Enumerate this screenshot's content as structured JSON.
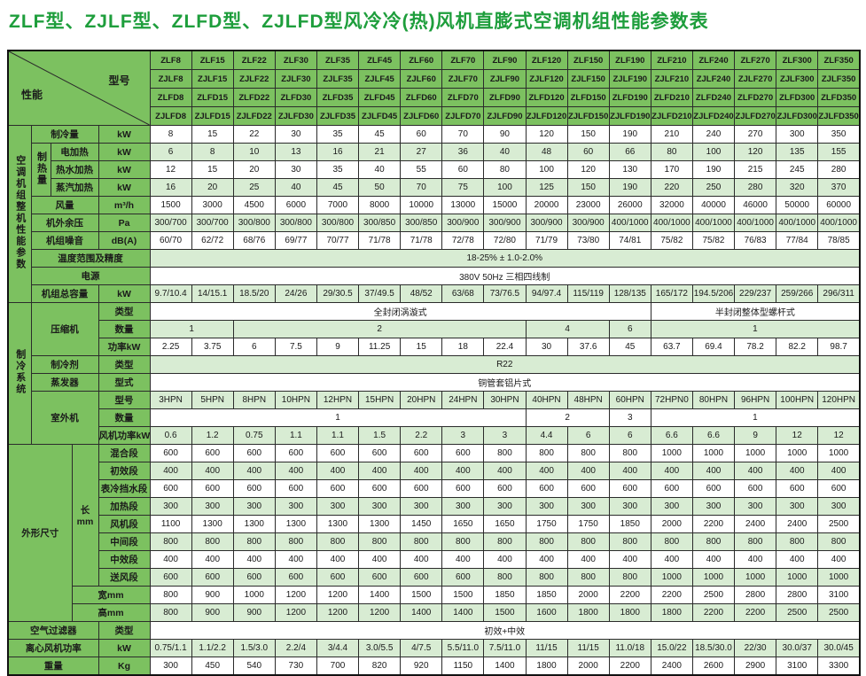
{
  "title": "ZLF型、ZJLF型、ZLFD型、ZJLFD型风冷冷(热)风机直膨式空调机组性能参数表",
  "colors": {
    "title_green": "#1e9e3c",
    "header_green": "#7cc160",
    "row_light_green": "#d8ecd3"
  },
  "header": {
    "corner_top": "型号",
    "corner_bottom": "性能",
    "model_rows": [
      [
        "ZLF8",
        "ZLF15",
        "ZLF22",
        "ZLF30",
        "ZLF35",
        "ZLF45",
        "ZLF60",
        "ZLF70",
        "ZLF90",
        "ZLF120",
        "ZLF150",
        "ZLF190",
        "ZLF210",
        "ZLF240",
        "ZLF270",
        "ZLF300",
        "ZLF350"
      ],
      [
        "ZJLF8",
        "ZJLF15",
        "ZJLF22",
        "ZJLF30",
        "ZJLF35",
        "ZJLF45",
        "ZJLF60",
        "ZJLF70",
        "ZJLF90",
        "ZJLF120",
        "ZJLF150",
        "ZJLF190",
        "ZJLF210",
        "ZJLF240",
        "ZJLF270",
        "ZJLF300",
        "ZJLF350"
      ],
      [
        "ZLFD8",
        "ZLFD15",
        "ZLFD22",
        "ZLFD30",
        "ZLFD35",
        "ZLFD45",
        "ZLFD60",
        "ZLFD70",
        "ZLFD90",
        "ZLFD120",
        "ZLFD150",
        "ZLFD190",
        "ZLFD210",
        "ZLFD240",
        "ZLFD270",
        "ZLFD300",
        "ZLFD350"
      ],
      [
        "ZJLFD8",
        "ZJLFD15",
        "ZJLFD22",
        "ZJLFD30",
        "ZJLFD35",
        "ZJLFD45",
        "ZJLFD60",
        "ZJLFD70",
        "ZJLFD90",
        "ZJLFD120",
        "ZJLFD150",
        "ZJLFD190",
        "ZJLFD210",
        "ZJLFD240",
        "ZJLFD270",
        "ZJLFD300",
        "ZJLFD350"
      ]
    ]
  },
  "rows": [
    {
      "labels": [
        {
          "text": "空调机组整机性能参数",
          "rowspan": 10,
          "vertical": true,
          "name": "group-label-unit-performance"
        },
        {
          "text": "制冷量",
          "colspan": 3
        },
        {
          "text": "kW"
        }
      ],
      "values": [
        "8",
        "15",
        "22",
        "30",
        "35",
        "45",
        "60",
        "70",
        "90",
        "120",
        "150",
        "190",
        "210",
        "240",
        "270",
        "300",
        "350"
      ]
    },
    {
      "labels": [
        {
          "text": "制热量",
          "rowspan": 3,
          "vertical": true,
          "name": "group-label-heating"
        },
        {
          "text": "电加热",
          "colspan": 2
        },
        {
          "text": "kW"
        }
      ],
      "values": [
        "6",
        "8",
        "10",
        "13",
        "16",
        "21",
        "27",
        "36",
        "40",
        "48",
        "60",
        "66",
        "80",
        "100",
        "120",
        "135",
        "155"
      ]
    },
    {
      "labels": [
        {
          "text": "热水加热",
          "colspan": 2
        },
        {
          "text": "kW"
        }
      ],
      "values": [
        "12",
        "15",
        "20",
        "30",
        "35",
        "40",
        "55",
        "60",
        "80",
        "100",
        "120",
        "130",
        "170",
        "190",
        "215",
        "245",
        "280"
      ]
    },
    {
      "labels": [
        {
          "text": "蒸汽加热",
          "colspan": 2
        },
        {
          "text": "kW"
        }
      ],
      "values": [
        "16",
        "20",
        "25",
        "40",
        "45",
        "50",
        "70",
        "75",
        "100",
        "125",
        "150",
        "190",
        "220",
        "250",
        "280",
        "320",
        "370"
      ]
    },
    {
      "labels": [
        {
          "text": "风量",
          "colspan": 3
        },
        {
          "text": "m³/h"
        }
      ],
      "values": [
        "1500",
        "3000",
        "4500",
        "6000",
        "7000",
        "8000",
        "10000",
        "13000",
        "15000",
        "20000",
        "23000",
        "26000",
        "32000",
        "40000",
        "46000",
        "50000",
        "60000"
      ]
    },
    {
      "labels": [
        {
          "text": "机外余压",
          "colspan": 3
        },
        {
          "text": "Pa"
        }
      ],
      "values": [
        "300/700",
        "300/700",
        "300/800",
        "300/800",
        "300/800",
        "300/850",
        "300/850",
        "300/900",
        "300/900",
        "300/900",
        "300/900",
        "400/1000",
        "400/1000",
        "400/1000",
        "400/1000",
        "400/1000",
        "400/1000"
      ]
    },
    {
      "labels": [
        {
          "text": "机组噪音",
          "colspan": 3
        },
        {
          "text": "dB(A)"
        }
      ],
      "values": [
        "60/70",
        "62/72",
        "68/76",
        "69/77",
        "70/77",
        "71/78",
        "71/78",
        "72/78",
        "72/80",
        "71/79",
        "73/80",
        "74/81",
        "75/82",
        "75/82",
        "76/83",
        "77/84",
        "78/85"
      ]
    },
    {
      "labels": [
        {
          "text": "温度范围及精度",
          "colspan": 4
        }
      ],
      "merged": "18-25% ± 1.0-2.0%"
    },
    {
      "labels": [
        {
          "text": "电源",
          "colspan": 4
        }
      ],
      "merged": "380V 50Hz 三相四线制"
    },
    {
      "labels": [
        {
          "text": "机组总容量",
          "colspan": 3
        },
        {
          "text": "kW"
        }
      ],
      "values": [
        "9.7/10.4",
        "14/15.1",
        "18.5/20",
        "24/26",
        "29/30.5",
        "37/49.5",
        "48/52",
        "63/68",
        "73/76.5",
        "94/97.4",
        "115/119",
        "128/135",
        "165/172",
        "194.5/206",
        "229/237",
        "259/266",
        "296/311"
      ]
    },
    {
      "labels": [
        {
          "text": "制冷系统",
          "rowspan": 8,
          "vertical": true,
          "name": "group-label-refrigeration"
        },
        {
          "text": "压缩机",
          "colspan": 3,
          "rowspan": 3
        },
        {
          "text": "类型"
        }
      ],
      "spans": [
        [
          12,
          "全封闭涡漩式"
        ],
        [
          5,
          "半封闭整体型螺杆式"
        ]
      ]
    },
    {
      "labels": [
        {
          "text": "数量"
        }
      ],
      "spans": [
        [
          2,
          "1"
        ],
        [
          7,
          "2"
        ],
        [
          2,
          "4"
        ],
        [
          1,
          "6"
        ],
        [
          5,
          "1"
        ]
      ]
    },
    {
      "labels": [
        {
          "text": "功率kW"
        }
      ],
      "values": [
        "2.25",
        "3.75",
        "6",
        "7.5",
        "9",
        "11.25",
        "15",
        "18",
        "22.4",
        "30",
        "37.6",
        "45",
        "63.7",
        "69.4",
        "78.2",
        "82.2",
        "98.7"
      ]
    },
    {
      "labels": [
        {
          "text": "制冷剂",
          "colspan": 3
        },
        {
          "text": "类型"
        }
      ],
      "merged": "R22"
    },
    {
      "labels": [
        {
          "text": "蒸发器",
          "colspan": 3
        },
        {
          "text": "型式"
        }
      ],
      "merged": "铜管套铝片式"
    },
    {
      "labels": [
        {
          "text": "室外机",
          "colspan": 3,
          "rowspan": 3
        },
        {
          "text": "型号"
        }
      ],
      "values": [
        "3HPN",
        "5HPN",
        "8HPN",
        "10HPN",
        "12HPN",
        "15HPN",
        "20HPN",
        "24HPN",
        "30HPN",
        "40HPN",
        "48HPN",
        "60HPN",
        "72HPN0",
        "80HPN",
        "96HPN",
        "100HPN",
        "120HPN"
      ]
    },
    {
      "labels": [
        {
          "text": "数量"
        }
      ],
      "spans": [
        [
          9,
          "1"
        ],
        [
          2,
          "2"
        ],
        [
          1,
          "3"
        ],
        [
          5,
          "1"
        ]
      ]
    },
    {
      "labels": [
        {
          "text": "风机功率kW"
        }
      ],
      "values": [
        "0.6",
        "1.2",
        "0.75",
        "1.1",
        "1.1",
        "1.5",
        "2.2",
        "3",
        "3",
        "4.4",
        "6",
        "6",
        "6.6",
        "6.6",
        "9",
        "12",
        "12"
      ]
    },
    {
      "labels": [
        {
          "text": "外形尺寸",
          "colspan": 3,
          "rowspan": 10,
          "name": "group-label-dimensions"
        },
        {
          "lines": [
            "长",
            "mm"
          ],
          "rowspan": 8,
          "name": "length-label"
        },
        {
          "text": "混合段"
        }
      ],
      "values": [
        "600",
        "600",
        "600",
        "600",
        "600",
        "600",
        "600",
        "600",
        "800",
        "800",
        "800",
        "800",
        "1000",
        "1000",
        "1000",
        "1000",
        "1000"
      ]
    },
    {
      "labels": [
        {
          "text": "初效段"
        }
      ],
      "values": [
        "400",
        "400",
        "400",
        "400",
        "400",
        "400",
        "400",
        "400",
        "400",
        "400",
        "400",
        "400",
        "400",
        "400",
        "400",
        "400",
        "400"
      ]
    },
    {
      "labels": [
        {
          "text": "表冷挡水段"
        }
      ],
      "values": [
        "600",
        "600",
        "600",
        "600",
        "600",
        "600",
        "600",
        "600",
        "600",
        "600",
        "600",
        "600",
        "600",
        "600",
        "600",
        "600",
        "600"
      ]
    },
    {
      "labels": [
        {
          "text": "加热段"
        }
      ],
      "values": [
        "300",
        "300",
        "300",
        "300",
        "300",
        "300",
        "300",
        "300",
        "300",
        "300",
        "300",
        "300",
        "300",
        "300",
        "300",
        "300",
        "300"
      ]
    },
    {
      "labels": [
        {
          "text": "风机段"
        }
      ],
      "values": [
        "1100",
        "1300",
        "1300",
        "1300",
        "1300",
        "1300",
        "1450",
        "1650",
        "1650",
        "1750",
        "1750",
        "1850",
        "2000",
        "2200",
        "2400",
        "2400",
        "2500"
      ]
    },
    {
      "labels": [
        {
          "text": "中间段"
        }
      ],
      "values": [
        "800",
        "800",
        "800",
        "800",
        "800",
        "800",
        "800",
        "800",
        "800",
        "800",
        "800",
        "800",
        "800",
        "800",
        "800",
        "800",
        "800"
      ]
    },
    {
      "labels": [
        {
          "text": "中效段"
        }
      ],
      "values": [
        "400",
        "400",
        "400",
        "400",
        "400",
        "400",
        "400",
        "400",
        "400",
        "400",
        "400",
        "400",
        "400",
        "400",
        "400",
        "400",
        "400"
      ]
    },
    {
      "labels": [
        {
          "text": "送风段"
        }
      ],
      "values": [
        "600",
        "600",
        "600",
        "600",
        "600",
        "600",
        "600",
        "600",
        "800",
        "800",
        "800",
        "800",
        "1000",
        "1000",
        "1000",
        "1000",
        "1000"
      ]
    },
    {
      "labels": [
        {
          "text": "宽mm",
          "colspan": 2
        }
      ],
      "values": [
        "800",
        "900",
        "1000",
        "1200",
        "1200",
        "1400",
        "1500",
        "1500",
        "1850",
        "1850",
        "2000",
        "2200",
        "2200",
        "2500",
        "2800",
        "2800",
        "3100"
      ]
    },
    {
      "labels": [
        {
          "text": "高mm",
          "colspan": 2
        }
      ],
      "values": [
        "800",
        "900",
        "900",
        "1200",
        "1200",
        "1200",
        "1400",
        "1400",
        "1500",
        "1600",
        "1800",
        "1800",
        "1800",
        "2200",
        "2200",
        "2500",
        "2500"
      ]
    },
    {
      "labels": [
        {
          "text": "空气过滤器",
          "colspan": 4
        },
        {
          "text": "类型"
        }
      ],
      "merged": "初效+中效"
    },
    {
      "labels": [
        {
          "text": "离心风机功率",
          "colspan": 4
        },
        {
          "text": "kW"
        }
      ],
      "values": [
        "0.75/1.1",
        "1.1/2.2",
        "1.5/3.0",
        "2.2/4",
        "3/4.4",
        "3.0/5.5",
        "4/7.5",
        "5.5/11.0",
        "7.5/11.0",
        "11/15",
        "11/15",
        "11.0/18",
        "15.0/22",
        "18.5/30.0",
        "22/30",
        "30.0/37",
        "30.0/45"
      ]
    },
    {
      "labels": [
        {
          "text": "重量",
          "colspan": 4
        },
        {
          "text": "Kg"
        }
      ],
      "values": [
        "300",
        "450",
        "540",
        "730",
        "700",
        "820",
        "920",
        "1150",
        "1400",
        "1800",
        "2000",
        "2200",
        "2400",
        "2600",
        "2900",
        "3100",
        "3300"
      ]
    }
  ]
}
